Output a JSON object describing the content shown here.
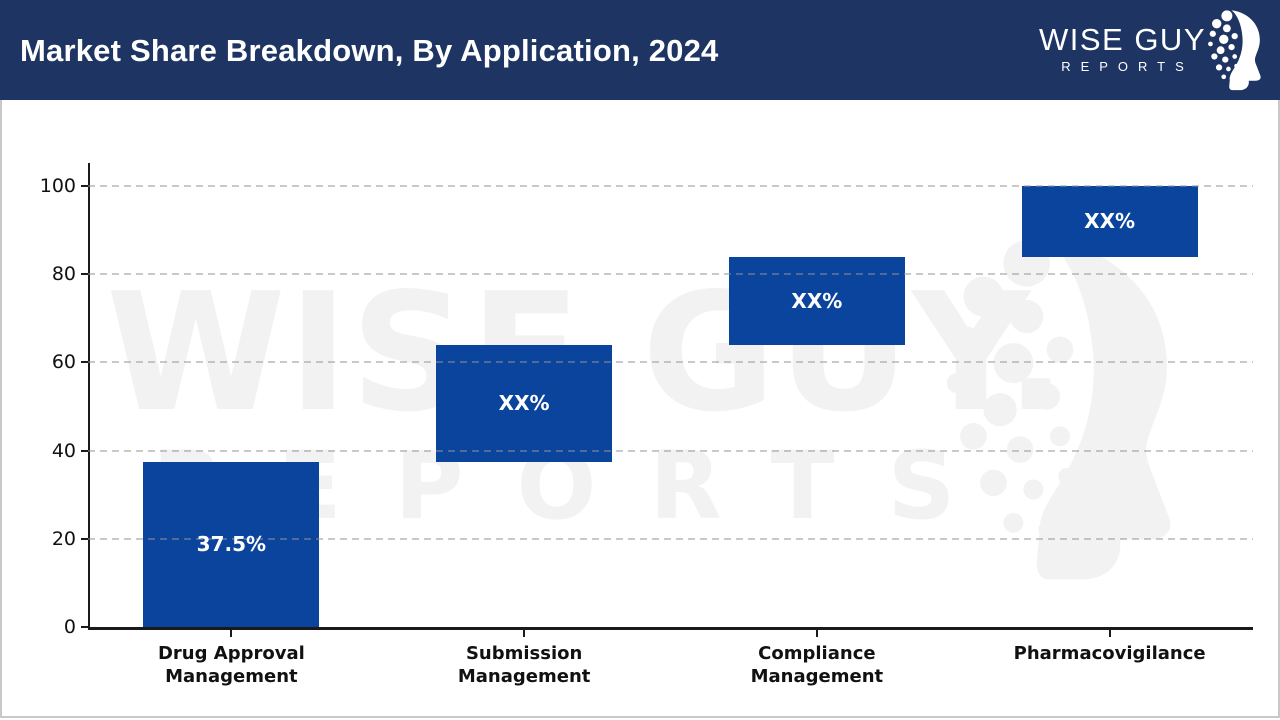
{
  "header": {
    "title": "Market Share Breakdown, By Application, 2024",
    "logo": {
      "name": "WISE GUY",
      "subtitle": "REPORTS"
    }
  },
  "watermark": {
    "line1": "WISE GUY.",
    "line2": "REPORTS"
  },
  "colors": {
    "header_bg": "#1e3563",
    "bar": "#0a449c",
    "bar_label": "#ffffff",
    "axis": "#1a1a1a",
    "gridline": "#949494",
    "watermark": "#f2f2f2"
  },
  "chart_data": {
    "type": "bar",
    "subtype": "floating-stacked-percentage-bars",
    "title": "Market Share Breakdown, By Application, 2024",
    "categories": [
      "Drug Approval Management",
      "Submission Management",
      "Compliance Management",
      "Pharmacovigilance"
    ],
    "category_label_lines": [
      [
        "Drug Approval",
        "Management"
      ],
      [
        "Submission",
        "Management"
      ],
      [
        "Compliance",
        "Management"
      ],
      [
        "Pharmacovigilance"
      ]
    ],
    "segments": [
      {
        "category": "Drug Approval Management",
        "start": 0,
        "end": 37.5,
        "value_label": "37.5%"
      },
      {
        "category": "Submission Management",
        "start": 37.5,
        "end": 64,
        "value_label": "XX%"
      },
      {
        "category": "Compliance Management",
        "start": 64,
        "end": 84,
        "value_label": "XX%"
      },
      {
        "category": "Pharmacovigilance",
        "start": 84,
        "end": 100,
        "value_label": "XX%"
      }
    ],
    "yticks": [
      0,
      20,
      40,
      60,
      80,
      100
    ],
    "ylim": [
      0,
      105
    ],
    "xlabel": "",
    "ylabel": "",
    "grid": "horizontal-dashed",
    "legend": "none"
  }
}
